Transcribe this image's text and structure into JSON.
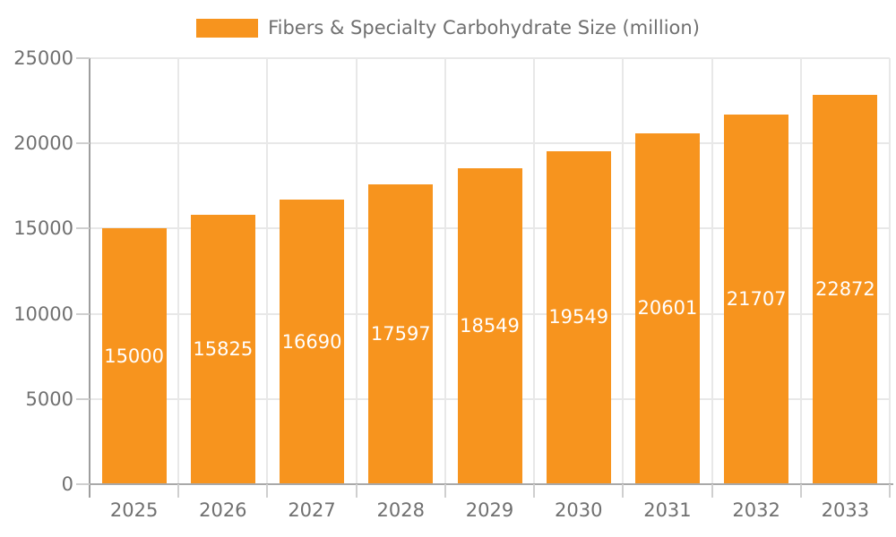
{
  "chart_data": {
    "type": "bar",
    "title": "Fibers & Specialty Carbohydrate Size (million)",
    "legend": {
      "position": "top",
      "label": "Fibers & Specialty Carbohydrate Size (million)"
    },
    "categories": [
      "2025",
      "2026",
      "2027",
      "2028",
      "2029",
      "2030",
      "2031",
      "2032",
      "2033"
    ],
    "series": [
      {
        "name": "Fibers & Specialty Carbohydrate Size (million)",
        "values": [
          15000,
          15825,
          16690,
          17597,
          18549,
          19549,
          20601,
          21707,
          22872
        ]
      }
    ],
    "bar_value_labels": [
      "15000",
      "15825",
      "16690",
      "17597",
      "18549",
      "19549",
      "20601",
      "21707",
      "22872"
    ],
    "xlabel": "",
    "ylabel": "",
    "ylim": [
      0,
      25000
    ],
    "y_ticks": [
      0,
      5000,
      10000,
      15000,
      20000,
      25000
    ],
    "y_tick_labels": [
      "0",
      "5000",
      "10000",
      "15000",
      "20000",
      "25000"
    ],
    "grid": true,
    "colors": {
      "bar": "#F7941E",
      "bar_label_text": "#FFFFFF",
      "axis_text": "#707070",
      "grid_line": "#E8E8E8",
      "x_axis_line": "#A9A9A9",
      "y_axis_line": "#9E9E9E",
      "tick_mark": "#CFCFCF",
      "background": "#FFFFFF"
    }
  }
}
